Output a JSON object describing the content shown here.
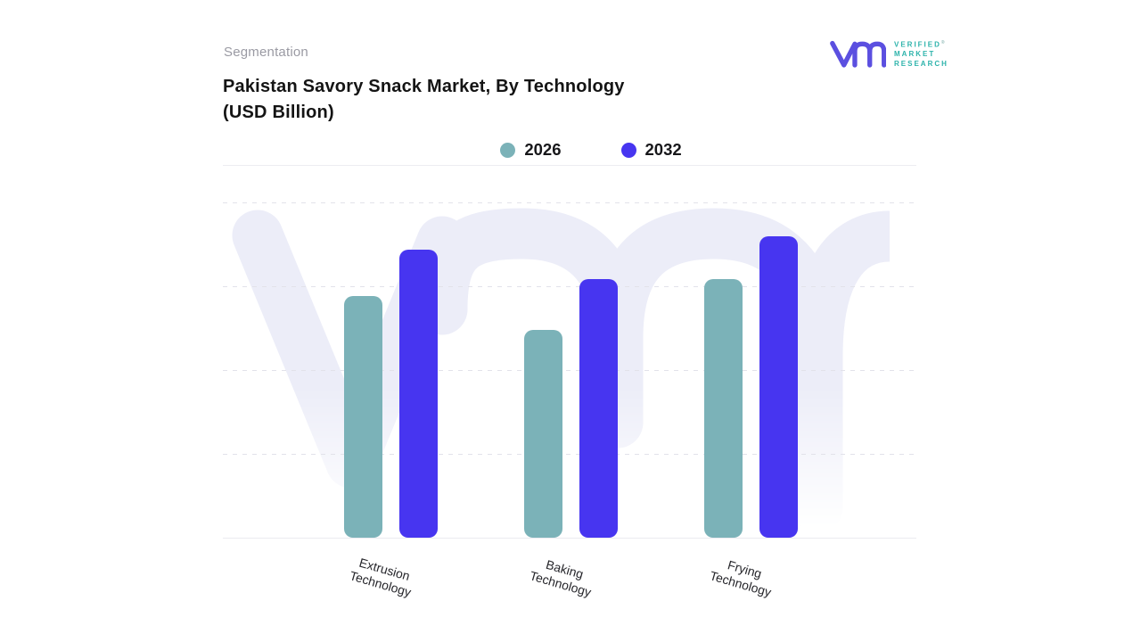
{
  "header": {
    "eyebrow": "Segmentation",
    "title_line1": "Pakistan Savory Snack Market, By Technology",
    "title_line2": "(USD Billion)"
  },
  "logo": {
    "line1": "VERIFIED",
    "line2": "MARKET",
    "line3": "RESEARCH",
    "registered_mark": "®",
    "glyph_color": "#5b4fe0",
    "text_color": "#2db3ab"
  },
  "legend": [
    {
      "label": "2026",
      "color": "#7bb2b8"
    },
    {
      "label": "2032",
      "color": "#4735f0"
    }
  ],
  "colors": {
    "series_2026": "#7bb2b8",
    "series_2032": "#4735f0",
    "watermark": "#ecedf8",
    "gridline": "#e2e2ea",
    "title_text": "#141414",
    "eyebrow_text": "#9a9aa3"
  },
  "chart_data": {
    "type": "bar",
    "title": "Pakistan Savory Snack Market, By Technology (USD Billion)",
    "categories": [
      "Extrusion Technology",
      "Baking Technology",
      "Frying Technology"
    ],
    "series": [
      {
        "name": "2026",
        "color": "#7bb2b8",
        "values": [
          72,
          62,
          77
        ]
      },
      {
        "name": "2032",
        "color": "#4735f0",
        "values": [
          86,
          77,
          90
        ]
      }
    ],
    "xlabel": "",
    "ylabel": "",
    "ylim": [
      0,
      100
    ],
    "y_tick_labels_visible": false,
    "values_note": "no numeric data labels or axis ticks shown; values estimated relative to top gridline = 100",
    "grid": "horizontal dashed, 4 lines above solid baseline",
    "legend_position": "top-center"
  }
}
